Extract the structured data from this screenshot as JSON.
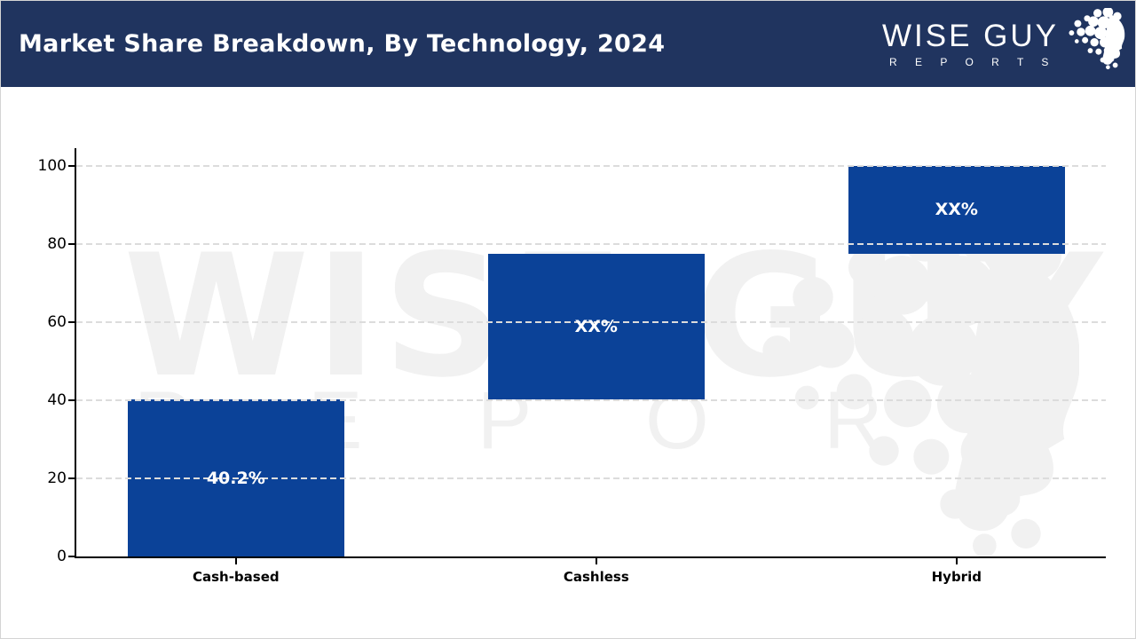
{
  "header": {
    "title": "Market Share Breakdown, By Technology, 2024",
    "logo": {
      "line1": "WISE GUY",
      "line2": "R E P O R T S"
    }
  },
  "watermark": {
    "line1": "WISE GUY",
    "line2": "R E P O R T S"
  },
  "colors": {
    "header_bg": "#20345f",
    "bar": "#0b4298",
    "grid": "#dcdcdc",
    "axis": "#000000",
    "bar_label": "#ffffff",
    "watermark": "#f1f1f1"
  },
  "chart_data": {
    "type": "bar",
    "subtype": "waterfall-stacked",
    "title": "Market Share Breakdown, By Technology, 2024",
    "xlabel": "",
    "ylabel": "",
    "categories": [
      "Cash-based",
      "Cashless",
      "Hybrid"
    ],
    "bars": [
      {
        "category": "Cash-based",
        "start": 0,
        "end": 40.2,
        "label": "40.2%"
      },
      {
        "category": "Cashless",
        "start": 40.2,
        "end": 77.5,
        "label": "XX%"
      },
      {
        "category": "Hybrid",
        "start": 77.5,
        "end": 100,
        "label": "XX%"
      }
    ],
    "yticks": [
      0,
      20,
      40,
      60,
      80,
      100
    ],
    "ylim": [
      0,
      104.5
    ],
    "grid": "horizontal-dashed",
    "legend": "none"
  }
}
